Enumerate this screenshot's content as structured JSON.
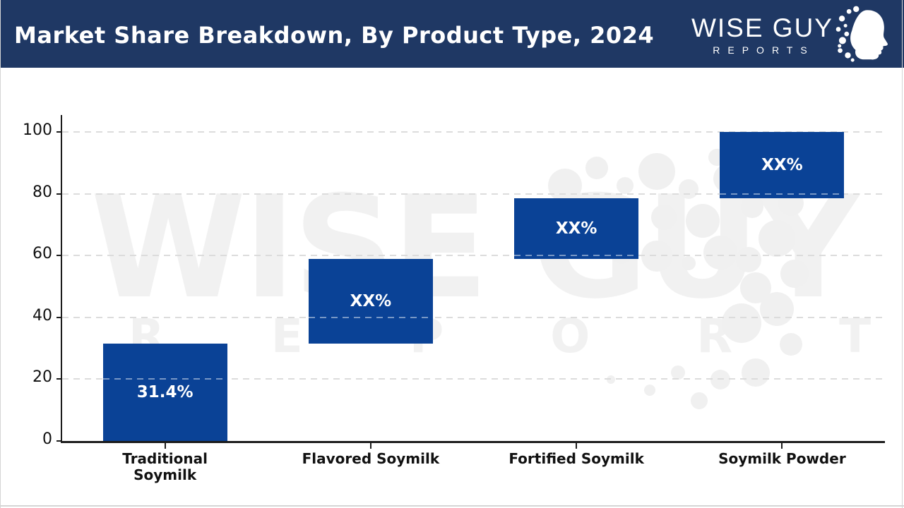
{
  "header": {
    "title": "Market Share Breakdown, By Product Type, 2024",
    "logo": {
      "name_line": "WISE GUY",
      "sub_line": "REPORTS"
    }
  },
  "watermark": {
    "line1": "WISE GUY",
    "line2": "R E P O R T S"
  },
  "colors": {
    "header_bg": "#1f3864",
    "bar": "#0a4296",
    "bar_label": "#ffffff",
    "grid": "#dcdcdc",
    "axis": "#1c1c1c",
    "watermark": "#f1f1f1"
  },
  "chart_data": {
    "type": "bar",
    "subtype": "waterfall",
    "title": "Market Share Breakdown, By Product Type, 2024",
    "xlabel": "",
    "ylabel": "",
    "ylim": [
      0,
      100
    ],
    "yticks": [
      0,
      20,
      40,
      60,
      80,
      100
    ],
    "grid": true,
    "legend": null,
    "categories": [
      "Traditional\nSoymilk",
      "Flavored Soymilk",
      "Fortified Soymilk",
      "Soymilk Powder"
    ],
    "segments": [
      {
        "category": "Traditional Soymilk",
        "start": 0,
        "end": 31.4,
        "label": "31.4%"
      },
      {
        "category": "Flavored Soymilk",
        "start": 31.4,
        "end": 59,
        "label": "XX%"
      },
      {
        "category": "Fortified Soymilk",
        "start": 59,
        "end": 78.5,
        "label": "XX%"
      },
      {
        "category": "Soymilk Powder",
        "start": 78.5,
        "end": 100,
        "label": "XX%"
      }
    ]
  }
}
